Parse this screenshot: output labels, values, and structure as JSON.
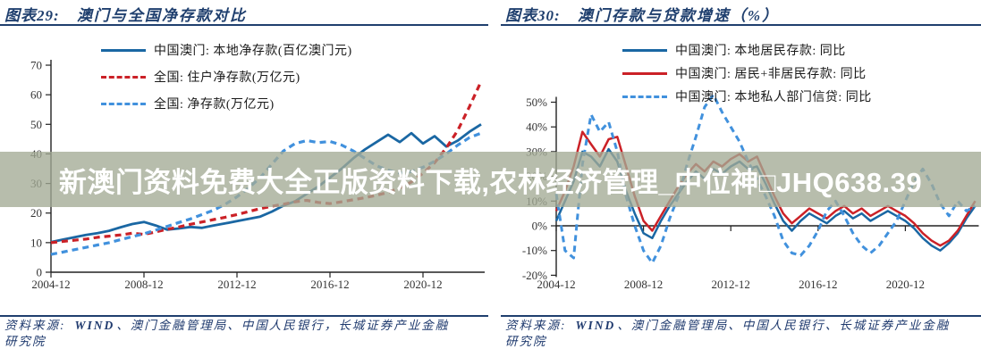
{
  "banner": {
    "text": "新澳门资料免费大全正版资料下载,农林经济管理_中位神□JHQ638.39",
    "background_rgba": "rgba(163,170,149,0.78)",
    "text_color": "#ffffff"
  },
  "panels": [
    {
      "number": "图表29:",
      "title": "澳门与全国净存款对比",
      "source_prefix": "资料来源:",
      "source_bold": "WIND",
      "source_line1": "、澳门金融管理局、中国人民银行，长城证券产业金融",
      "source_line2": "研究院"
    },
    {
      "number": "图表30:",
      "title": "澳门存款与贷款增速（%）",
      "source_prefix": "资料来源:",
      "source_bold": "WIND",
      "source_line1": "、澳门金融管理局、中国人民银行、长城证券产业金融",
      "source_line2": "研究院"
    }
  ],
  "chart_data": [
    {
      "type": "line",
      "title": "澳门与全国净存款对比",
      "xlabel": "",
      "ylabel": "",
      "ylim": [
        0,
        70
      ],
      "grid": false,
      "legend_position": "top-left-inside",
      "x_start": 2004.92,
      "x_step": 0.5,
      "x_tick_years": [
        2004.92,
        2008.92,
        2012.92,
        2016.92,
        2020.92
      ],
      "x_tick_labels": [
        "2004-12",
        "2008-12",
        "2012-12",
        "2016-12",
        "2020-12"
      ],
      "y_ticks": [
        0,
        10,
        20,
        30,
        40,
        50,
        60,
        70
      ],
      "y_tick_labels": [
        "0",
        "10",
        "20",
        "30",
        "40",
        "50",
        "60",
        "70"
      ],
      "series": [
        {
          "name": "中国澳门: 本地净存款(百亿澳门元)",
          "color": "#1a67a3",
          "style": "solid",
          "values": [
            10.2,
            11.0,
            11.8,
            12.6,
            13.2,
            14.0,
            15.2,
            16.3,
            17.0,
            15.8,
            14.4,
            14.8,
            15.3,
            15.0,
            15.8,
            16.5,
            17.3,
            18.0,
            18.8,
            20.5,
            22.5,
            24.0,
            26.5,
            29.0,
            32.0,
            35.0,
            38.5,
            41.5,
            44.0,
            46.5,
            44.0,
            47.0,
            43.5,
            46.0,
            42.5,
            44.5,
            47.5,
            50.0
          ]
        },
        {
          "name": "全国: 住户净存款(万亿元)",
          "color": "#cb2127",
          "style": "dashed",
          "values": [
            10.0,
            10.4,
            10.8,
            11.2,
            11.8,
            12.2,
            12.6,
            13.2,
            12.8,
            13.6,
            14.5,
            15.3,
            16.2,
            17.0,
            17.8,
            18.6,
            19.5,
            20.5,
            21.5,
            22.3,
            23.0,
            23.8,
            24.3,
            23.6,
            23.2,
            23.8,
            24.5,
            25.2,
            26.0,
            27.0,
            28.5,
            30.5,
            33.5,
            37.0,
            42.0,
            48.0,
            56.0,
            64.5
          ]
        },
        {
          "name": "全国: 净存款(万亿元)",
          "color": "#4191dd",
          "style": "dashed",
          "values": [
            6.0,
            6.8,
            7.6,
            8.4,
            9.2,
            10.0,
            11.0,
            12.0,
            13.0,
            14.2,
            15.5,
            16.8,
            18.0,
            19.5,
            21.0,
            23.0,
            25.5,
            28.5,
            32.0,
            36.5,
            41.0,
            43.5,
            44.5,
            43.8,
            44.2,
            43.0,
            41.0,
            38.5,
            36.0,
            34.5,
            33.5,
            34.0,
            35.5,
            37.5,
            40.0,
            43.0,
            45.5,
            47.0
          ]
        }
      ]
    },
    {
      "type": "line",
      "title": "澳门存款与贷款增速（%）",
      "xlabel": "",
      "ylabel": "",
      "ylim": [
        -20,
        50
      ],
      "grid": false,
      "legend_position": "top-left-inside",
      "x_start": 2004.92,
      "x_step": 0.4,
      "x_tick_years": [
        2004.92,
        2008.92,
        2012.92,
        2016.92,
        2020.92
      ],
      "x_tick_labels": [
        "2004-12",
        "2008-12",
        "2012-12",
        "2016-12",
        "2020-12"
      ],
      "y_ticks": [
        -20,
        -10,
        0,
        10,
        20,
        30,
        40,
        50
      ],
      "y_tick_labels": [
        "-20%",
        "-10%",
        "0%",
        "10%",
        "20%",
        "30%",
        "40%",
        "50%"
      ],
      "series": [
        {
          "name": "中国澳门: 本地居民存款: 同比",
          "color": "#1a67a3",
          "style": "solid",
          "values": [
            2,
            10,
            18,
            30,
            28,
            24,
            31,
            26,
            14,
            5,
            -3,
            -5,
            2,
            8,
            13,
            18,
            22,
            19,
            23,
            21,
            24,
            26,
            23,
            24,
            17,
            9,
            2,
            -2,
            2,
            5,
            3,
            1,
            4,
            6,
            3,
            5,
            2,
            4,
            6,
            4,
            2,
            -1,
            -5,
            -8,
            -10,
            -7,
            -3,
            3,
            8
          ]
        },
        {
          "name": "中国澳门: 居民+非居民存款: 同比",
          "color": "#cb2127",
          "style": "solid",
          "values": [
            6,
            14,
            24,
            38,
            33,
            28,
            35,
            36,
            24,
            12,
            2,
            -2,
            4,
            10,
            16,
            21,
            25,
            22,
            26,
            24,
            27,
            29,
            26,
            28,
            20,
            12,
            5,
            1,
            4,
            7,
            5,
            3,
            6,
            8,
            5,
            7,
            4,
            6,
            8,
            6,
            4,
            1,
            -3,
            -6,
            -8,
            -6,
            -2,
            4,
            10
          ]
        },
        {
          "name": "中国澳门: 本地私人部门信贷: 同比",
          "color": "#4191dd",
          "style": "dashed",
          "values": [
            13,
            -10,
            -13,
            25,
            45,
            38,
            42,
            30,
            12,
            0,
            -10,
            -15,
            -8,
            3,
            12,
            25,
            36,
            48,
            53,
            46,
            40,
            34,
            26,
            19,
            12,
            4,
            -6,
            -11,
            -12,
            -8,
            -2,
            6,
            10,
            4,
            -3,
            -8,
            -11,
            -8,
            -3,
            2,
            10,
            18,
            23,
            17,
            9,
            4,
            10,
            6,
            8
          ]
        }
      ]
    }
  ]
}
